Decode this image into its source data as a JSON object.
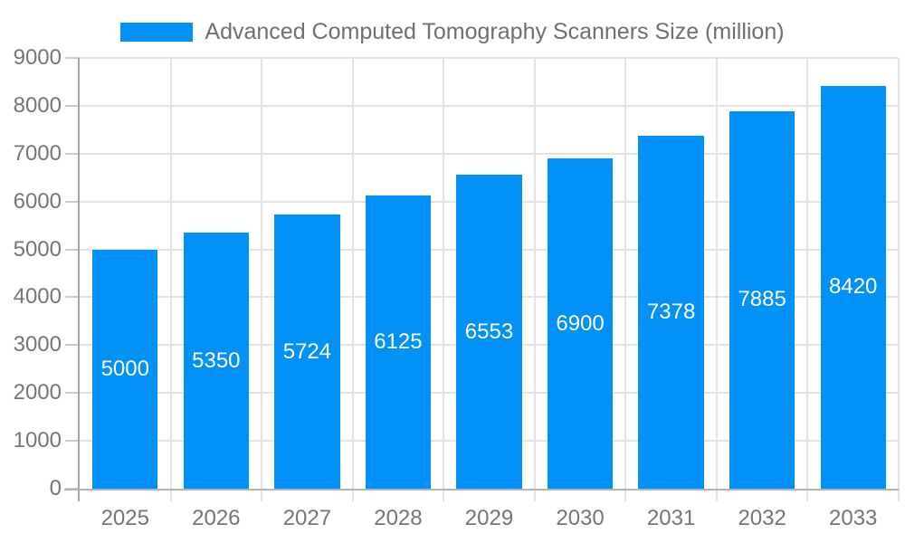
{
  "chart_data": {
    "type": "bar",
    "title": "Advanced Computed Tomography Scanners Size (million)",
    "categories": [
      "2025",
      "2026",
      "2027",
      "2028",
      "2029",
      "2030",
      "2031",
      "2032",
      "2033"
    ],
    "values": [
      5000,
      5350,
      5724,
      6125,
      6553,
      6900,
      7378,
      7885,
      8420
    ],
    "value_labels": [
      "5000",
      "5350",
      "5724",
      "6125",
      "6553",
      "6900",
      "7378",
      "7885",
      "8420"
    ],
    "xlabel": "",
    "ylabel": "",
    "ylim": [
      0,
      9000
    ],
    "ytick_step": 1000,
    "ytick_labels": [
      "0",
      "1000",
      "2000",
      "3000",
      "4000",
      "5000",
      "6000",
      "7000",
      "8000",
      "9000"
    ],
    "grid": true,
    "legend_position": "top",
    "bar_color": "#0291f7",
    "value_label_color": "#ffffff",
    "axis_text_color": "#757575",
    "grid_color": "#e3e3e3",
    "axis_line_color": "#b3b3b3",
    "background": "#ffffff"
  }
}
